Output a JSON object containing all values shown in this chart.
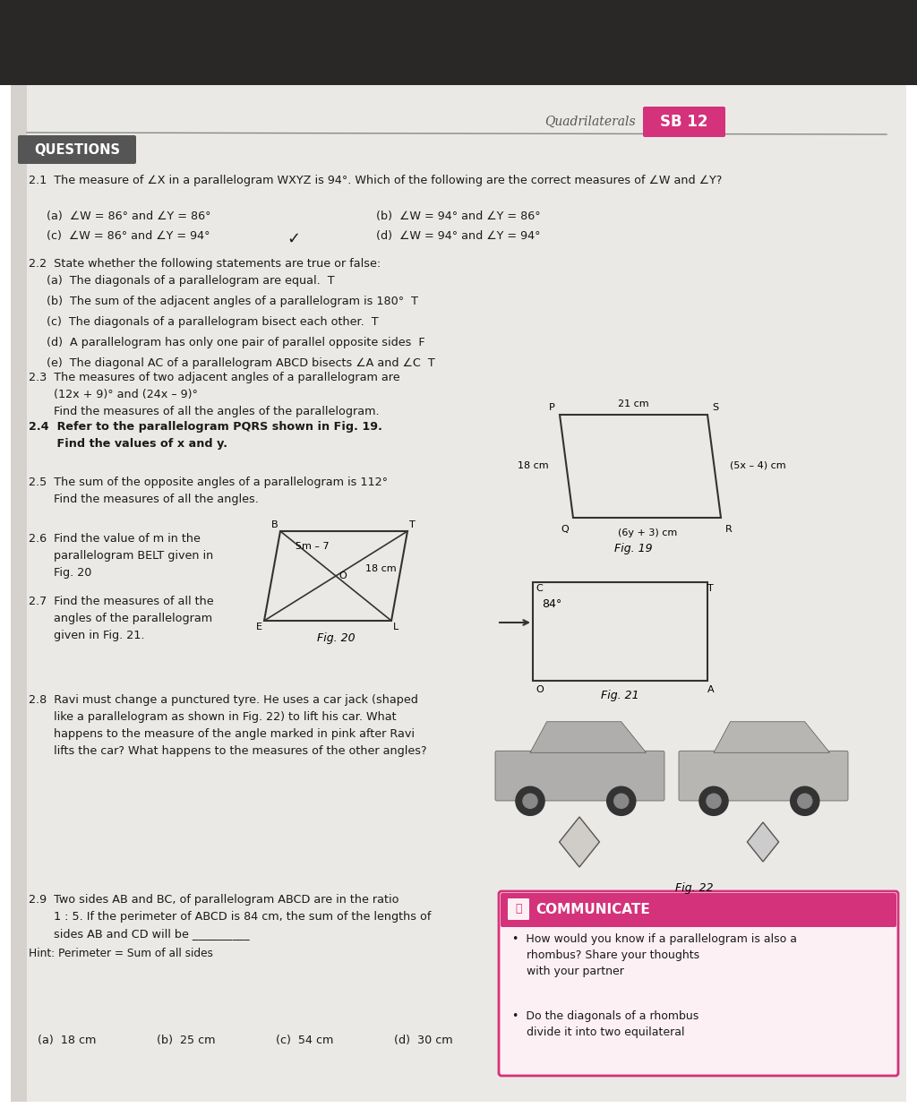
{
  "title_header": "Quadrilaterals",
  "sb_label": "SB 12",
  "section_label": "QUESTIONS",
  "pink_color": "#d4327a",
  "dark_bg": "#555555",
  "q21_text": "2.1  The measure of ∠X in a parallelogram WXYZ is 94°. Which of the following are the correct measures of ∠W and ∠Y?",
  "q21_a": "(a)  ∠W = 86° and ∠Y = 86°",
  "q21_b": "(b)  ∠W = 94° and ∠Y = 86°",
  "q21_c": "(c)  ∠W = 86° and ∠Y = 94°",
  "q21_d": "(d)  ∠W = 94° and ∠Y = 94°",
  "q22_text": "2.2  State whether the following statements are true or false:",
  "q22_a": "(a)  The diagonals of a parallelogram are equal.  T",
  "q22_b": "(b)  The sum of the adjacent angles of a parallelogram is 180°  T",
  "q22_c": "(c)  The diagonals of a parallelogram bisect each other.  T",
  "q22_d": "(d)  A parallelogram has only one pair of parallel opposite sides  F",
  "q22_e": "(e)  The diagonal AC of a parallelogram ABCD bisects ∠A and ∠C  T",
  "q23_line1": "2.3  The measures of two adjacent angles of a parallelogram are",
  "q23_line2": "       (12x + 9)° and (24x – 9)°",
  "q23_line3": "       Find the measures of all the angles of the parallelogram.",
  "q24_line1": "2.4  Refer to the parallelogram PQRS shown in Fig. 19.",
  "q24_line2": "       Find the values of x and y.",
  "q25_line1": "2.5  The sum of the opposite angles of a parallelogram is 112°",
  "q25_line2": "       Find the measures of all the angles.",
  "q26_line1": "2.6  Find the value of m in the",
  "q26_line2": "       parallelogram BELT given in",
  "q26_line3": "       Fig. 20",
  "q27_line1": "2.7  Find the measures of all the",
  "q27_line2": "       angles of the parallelogram",
  "q27_line3": "       given in Fig. 21.",
  "q28_line1": "2.8  Ravi must change a punctured tyre. He uses a car jack (shaped",
  "q28_line2": "       like a parallelogram as shown in Fig. 22) to lift his car. What",
  "q28_line3": "       happens to the measure of the angle marked in pink after Ravi",
  "q28_line4": "       lifts the car? What happens to the measures of the other angles?",
  "q29_line1": "2.9  Two sides AB and BC, of parallelogram ABCD are in the ratio",
  "q29_line2": "       1 : 5. If the perimeter of ABCD is 84 cm, the sum of the lengths of",
  "q29_line3": "       sides AB and CD will be __________",
  "q29_hint": "Hint: Perimeter = Sum of all sides",
  "q29_a": "(a)  18 cm",
  "q29_b": "(b)  25 cm",
  "q29_c": "(c)  54 cm",
  "q29_d": "(d)  30 cm",
  "communicate_title": "COMMUNICATE",
  "communicate_1": "•  How would you know if a parallelogram is also a\n    rhombus? Share your thoughts\n    with your partner",
  "communicate_2": "•  Do the diagonals of a rhombus\n    divide it into two equilateral"
}
